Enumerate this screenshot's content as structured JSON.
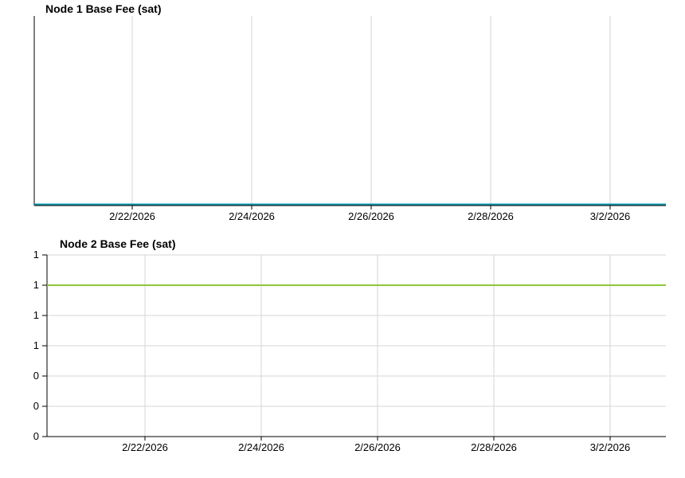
{
  "page": {
    "background_color": "#ffffff"
  },
  "colors": {
    "axis": "#000000",
    "gridline": "#d6d6d6",
    "tick": "#000000",
    "label_text": "#000000",
    "node1_line": "#0f99ac",
    "node2_line": "#8cc63c"
  },
  "chart_data": [
    {
      "type": "line",
      "title": "Node 1 Base Fee (sat)",
      "xlabel": "",
      "ylabel": "",
      "x_tick_labels": [
        "2/22/2026",
        "2/24/2026",
        "2/26/2026",
        "2/28/2026",
        "3/2/2026"
      ],
      "y_tick_labels": [],
      "ylim": [
        0,
        1
      ],
      "grid": "vertical-only",
      "legend": "none",
      "series": [
        {
          "name": "Node 1 Base Fee",
          "shape": "flat-horizontal-line",
          "constant_value": 0,
          "color_key": "node1_line"
        }
      ]
    },
    {
      "type": "line",
      "title": "Node 2 Base Fee (sat)",
      "xlabel": "",
      "ylabel": "",
      "x_tick_labels": [
        "2/22/2026",
        "2/24/2026",
        "2/26/2026",
        "2/28/2026",
        "3/2/2026"
      ],
      "y_tick_labels": [
        "1",
        "1",
        "1",
        "1",
        "0",
        "0",
        "0"
      ],
      "y_tick_values": [
        1.2,
        1.0,
        0.8,
        0.6,
        0.4,
        0.2,
        0.0
      ],
      "ylim": [
        0,
        1.2
      ],
      "grid": "both",
      "legend": "none",
      "series": [
        {
          "name": "Node 2 Base Fee",
          "shape": "flat-horizontal-line",
          "constant_value": 1,
          "color_key": "node2_line"
        }
      ]
    }
  ]
}
